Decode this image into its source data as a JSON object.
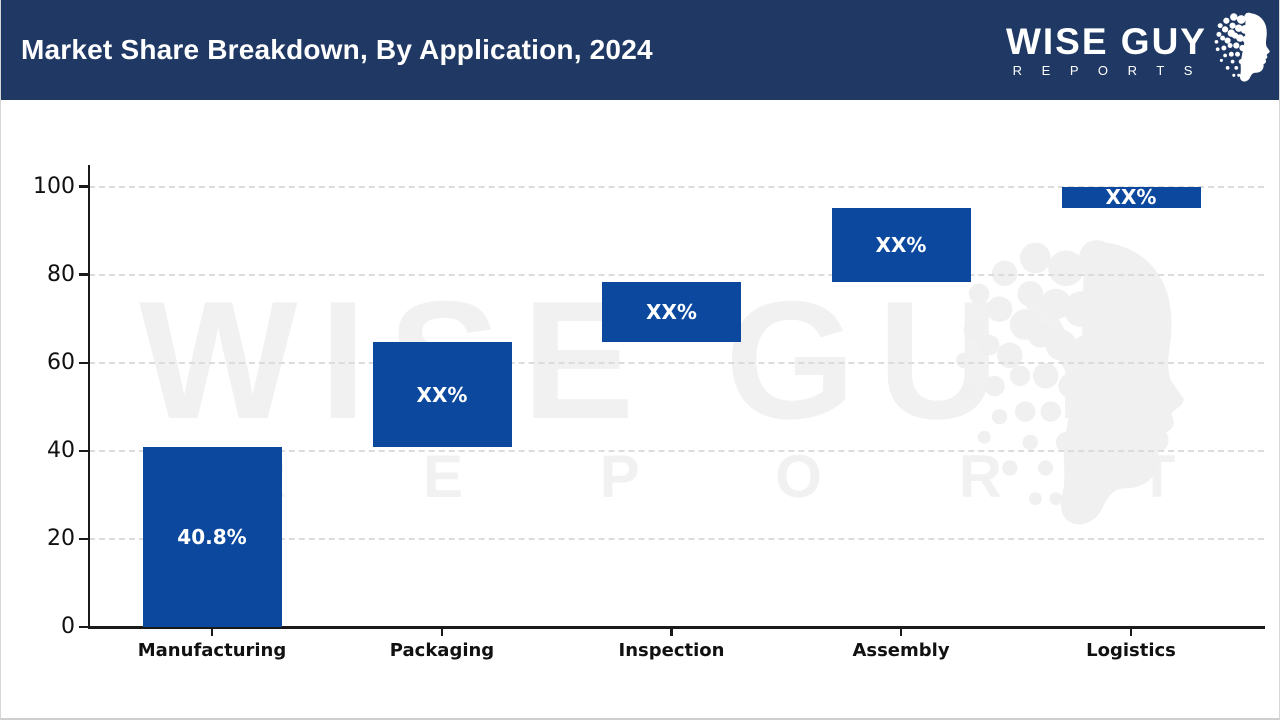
{
  "header": {
    "title": "Market Share Breakdown, By Application, 2024",
    "logo": {
      "line1": "WISE GUY",
      "line2": "R E P O R T S"
    }
  },
  "watermark": {
    "line1": "WISE GUY",
    "line2": "R E P O R T S"
  },
  "colors": {
    "header_bg": "#1f3864",
    "bar_blue": "#0b489e",
    "grid_gray": "#dcdcdc",
    "axis_black": "#1a1a1a",
    "bar_label_white": "#ffffff",
    "watermark_gray": "#f1f1f1"
  },
  "chart_data": {
    "type": "bar",
    "subtype": "waterfall",
    "title": "Market Share Breakdown, By Application, 2024",
    "categories": [
      "Manufacturing",
      "Packaging",
      "Inspection",
      "Assembly",
      "Logistics"
    ],
    "segments": [
      {
        "category": "Manufacturing",
        "start": 0,
        "end": 40.8,
        "label": "40.8%"
      },
      {
        "category": "Packaging",
        "start": 40.8,
        "end": 64.7,
        "label": "XX%"
      },
      {
        "category": "Inspection",
        "start": 64.7,
        "end": 78.3,
        "label": "XX%"
      },
      {
        "category": "Assembly",
        "start": 78.3,
        "end": 95.1,
        "label": "XX%"
      },
      {
        "category": "Logistics",
        "start": 95.1,
        "end": 100,
        "label": "XX%"
      }
    ],
    "xlabel": "",
    "ylabel": "",
    "ylim": [
      0,
      100
    ],
    "yticks": [
      0,
      20,
      40,
      60,
      80,
      100
    ],
    "grid": "horizontal-dashed",
    "legend": "none"
  }
}
